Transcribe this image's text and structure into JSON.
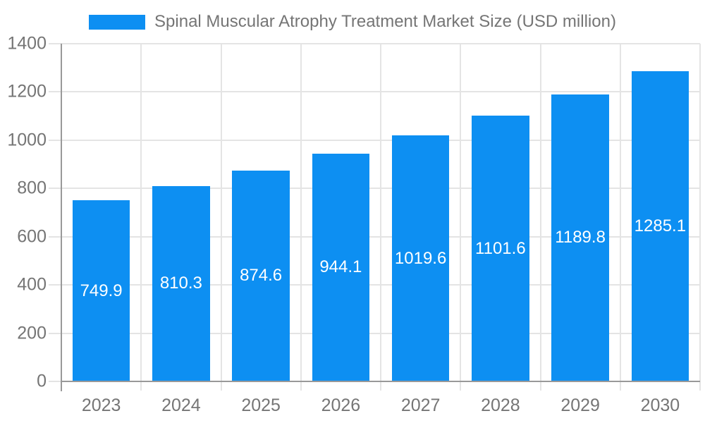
{
  "legend": {
    "position": "top",
    "swatch_color": "#0D8FF2"
  },
  "chart_data": {
    "type": "bar",
    "title": "Spinal Muscular Atrophy Treatment Market Size (USD million)",
    "series_name": "Spinal Muscular Atrophy Treatment Market Size (USD million)",
    "categories": [
      "2023",
      "2024",
      "2025",
      "2026",
      "2027",
      "2028",
      "2029",
      "2030"
    ],
    "values": [
      749.9,
      810.3,
      874.6,
      944.1,
      1019.6,
      1101.6,
      1189.8,
      1285.1
    ],
    "xlabel": "",
    "ylabel": "",
    "ylim": [
      0,
      1400
    ],
    "yticks": [
      0,
      200,
      400,
      600,
      800,
      1000,
      1200,
      1400
    ],
    "grid": true,
    "legend_position": "top",
    "bar_labels_inside": true,
    "bar_width_pct_of_band": 72,
    "colors": {
      "bar": "#0D8FF2",
      "bar_label": "#ffffff",
      "axis_text": "#757575",
      "gridline": "#e4e4e4",
      "axis_line": "#999999",
      "background": "#ffffff"
    }
  }
}
